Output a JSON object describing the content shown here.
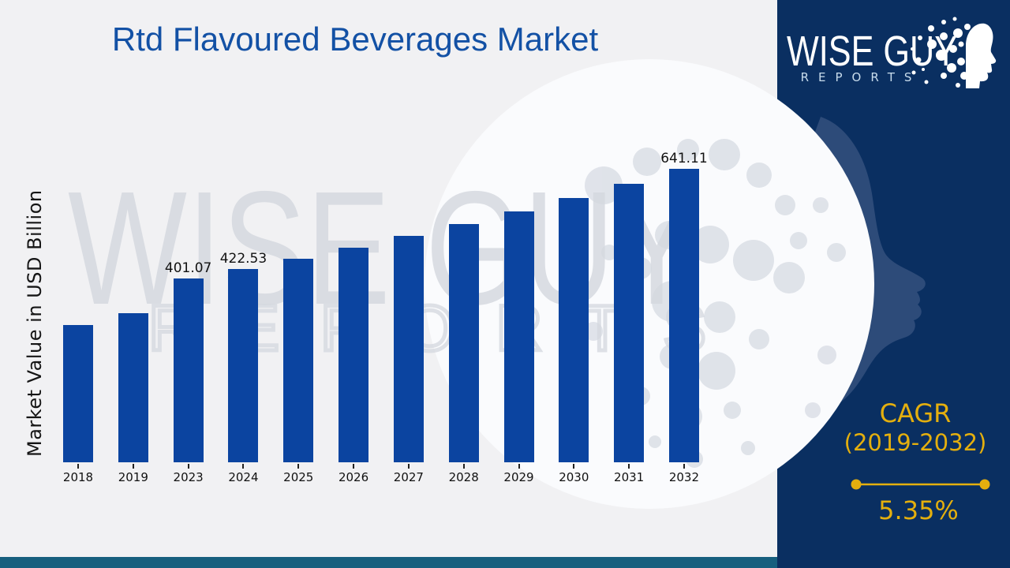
{
  "title": "Rtd Flavoured Beverages Market",
  "y_axis_label": "Market Value in USD Billion",
  "watermark": {
    "line1": "WISE GUY",
    "line2": "REPORTS"
  },
  "logo": {
    "name_line": "WISE GUY",
    "sub_line": "REPORTS"
  },
  "cagr": {
    "label": "CAGR",
    "range": "(2019-2032)",
    "value": "5.35%"
  },
  "colors": {
    "background": "#f1f1f3",
    "bar": "#0b44a0",
    "title_text": "#1351a5",
    "brand_panel_navy": "#0a2f61",
    "face_profile_navy": "#2d4b79",
    "accent_gold": "#e4af0e",
    "footer_teal": "#175f7e",
    "axis_text": "#111111"
  },
  "chart_data": {
    "type": "bar",
    "categories": [
      "2018",
      "2019",
      "2023",
      "2024",
      "2025",
      "2026",
      "2027",
      "2028",
      "2029",
      "2030",
      "2031",
      "2032"
    ],
    "values": [
      300.4,
      325.6,
      401.07,
      422.53,
      445.13,
      468.95,
      494.04,
      520.47,
      548.31,
      577.65,
      608.55,
      641.11
    ],
    "bar_labels": [
      "",
      "",
      "401.07",
      "422.53",
      "",
      "",
      "",
      "",
      "",
      "",
      "",
      "641.11"
    ],
    "title": "Rtd Flavoured Beverages Market",
    "xlabel": "",
    "ylabel": "Market Value in USD Billion",
    "ylim": [
      0,
      690
    ],
    "grid": false,
    "legend": false
  }
}
